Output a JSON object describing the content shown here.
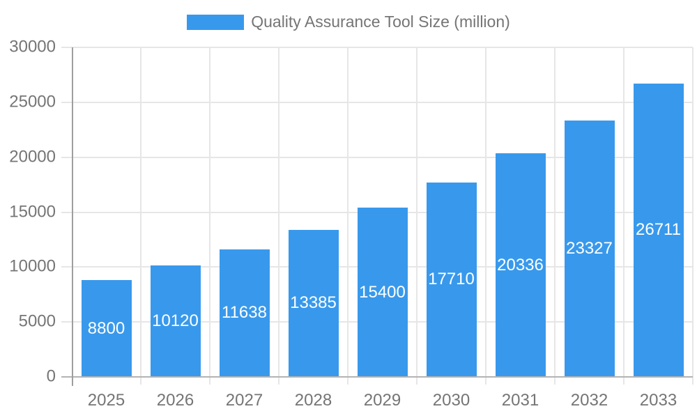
{
  "chart_data": {
    "type": "bar",
    "title": "Quality Assurance Tool Size (million)",
    "categories": [
      "2025",
      "2026",
      "2027",
      "2028",
      "2029",
      "2030",
      "2031",
      "2032",
      "2033"
    ],
    "values": [
      8800,
      10120,
      11638,
      13385,
      15400,
      17710,
      20336,
      23327,
      26711
    ],
    "xlabel": "",
    "ylabel": "",
    "ylim": [
      0,
      30000
    ],
    "yticks": [
      0,
      5000,
      10000,
      15000,
      20000,
      25000,
      30000
    ],
    "grid": true,
    "legend_position": "top-center",
    "legend": [
      {
        "label": "Quality Assurance Tool Size (million)",
        "color": "#3899ec"
      }
    ],
    "bar_color": "#3899ec",
    "value_label_color": "#ffffff",
    "value_labels_inside_bars": true
  },
  "colors": {
    "background": "#ffffff",
    "grid_line": "#e6e6e6",
    "x_axis_line": "#b3b3b3",
    "y_axis_line": "#9e9e9e",
    "tick_text": "#757575",
    "legend_text": "#757575"
  }
}
